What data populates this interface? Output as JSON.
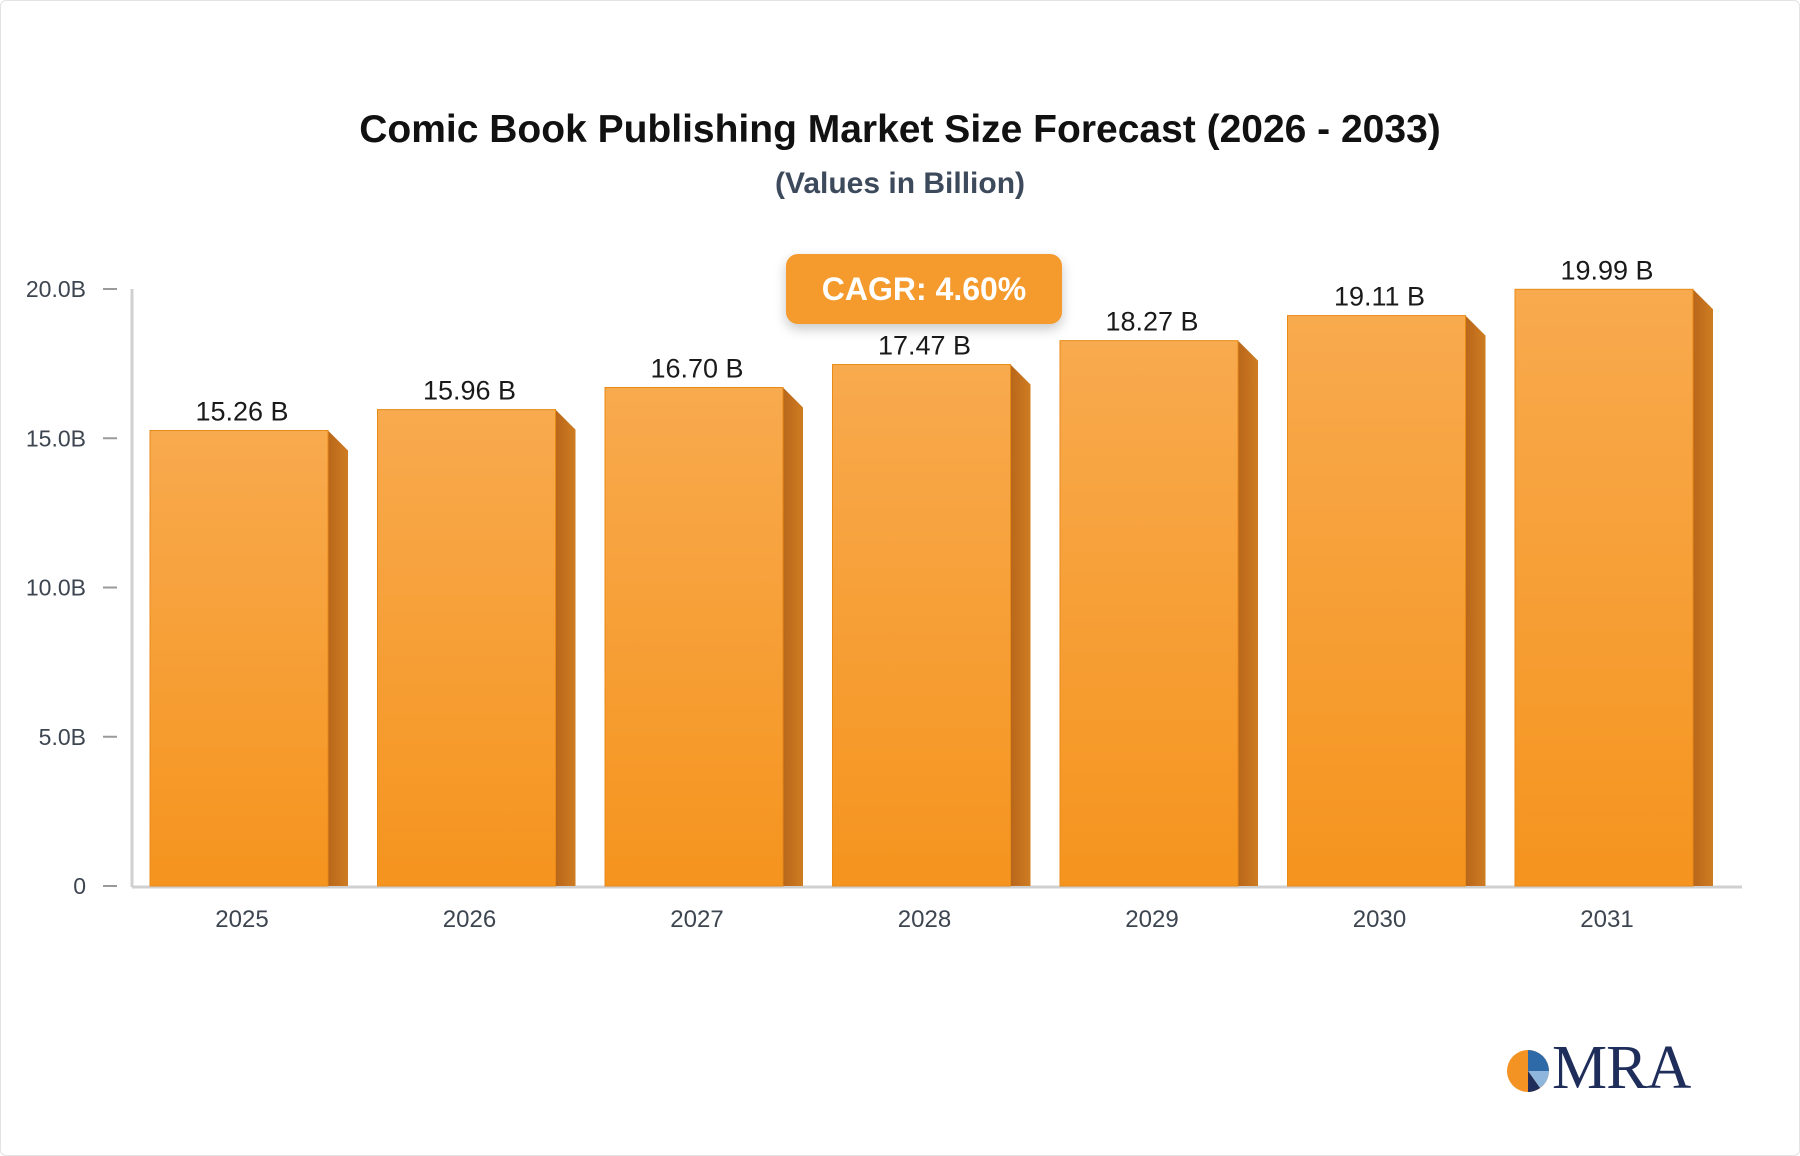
{
  "title": "Comic Book Publishing Market Size Forecast (2026 - 2033)",
  "subtitle": "(Values in Billion)",
  "badge": {
    "label": "CAGR: 4.60%"
  },
  "logo": {
    "text": "MRA"
  },
  "colors": {
    "bar_front_top": "#f8aa4e",
    "bar_front_bottom": "#f5941e",
    "bar_side": "#c0711a",
    "badge": "#f59a2c",
    "axis": "#cccccc",
    "logo_text": "#1f2d5a",
    "logo_orange": "#f39323",
    "logo_blue": "#2f6aa8"
  },
  "chart_data": {
    "type": "bar",
    "title": "Comic Book Publishing Market Size Forecast (2026 - 2033)",
    "subtitle": "(Values in Billion)",
    "categories": [
      "2025",
      "2026",
      "2027",
      "2028",
      "2029",
      "2030",
      "2031"
    ],
    "values": [
      15.26,
      15.96,
      16.7,
      17.47,
      18.27,
      19.11,
      19.99
    ],
    "value_labels": [
      "15.26 B",
      "15.96 B",
      "16.70 B",
      "17.47 B",
      "18.27 B",
      "19.11 B",
      "19.99 B"
    ],
    "ylim": [
      0,
      20
    ],
    "yticks": [
      0,
      5,
      10,
      15,
      20
    ],
    "ytick_labels": [
      "0",
      "5.0B",
      "10.0B",
      "15.0B",
      "20.0B"
    ],
    "grid": false,
    "legend": "none",
    "annotation": "CAGR: 4.60%"
  }
}
